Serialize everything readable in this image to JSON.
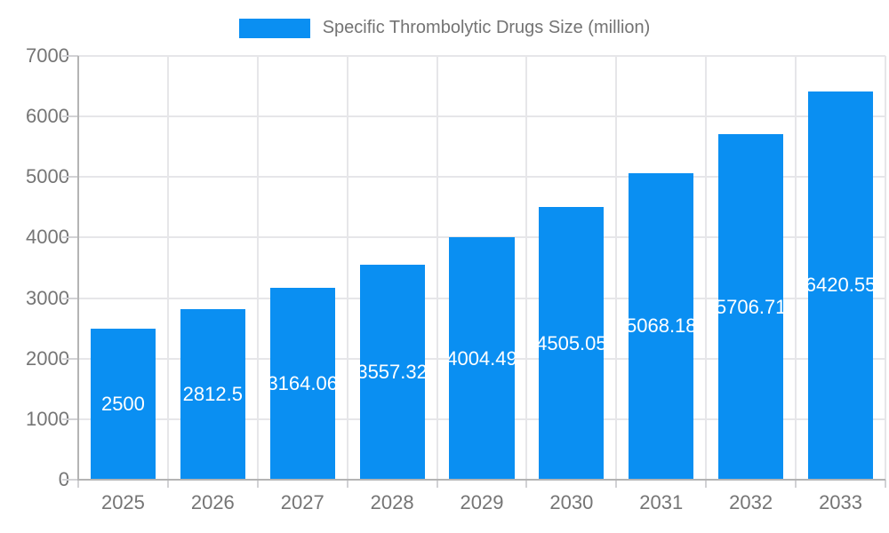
{
  "chart_data": {
    "type": "bar",
    "legend": "Specific Thrombolytic Drugs Size (million)",
    "legend_position": "top",
    "categories": [
      "2025",
      "2026",
      "2027",
      "2028",
      "2029",
      "2030",
      "2031",
      "2032",
      "2033"
    ],
    "series": [
      {
        "name": "Specific Thrombolytic Drugs Size (million)",
        "values": [
          2500,
          2812.5,
          3164.06,
          3557.32,
          4004.49,
          4505.05,
          5068.18,
          5706.71,
          6420.55
        ],
        "value_labels": [
          "2500",
          "2812.5",
          "3164.06",
          "3557.32",
          "4004.49",
          "4505.05",
          "5068.18",
          "5706.71",
          "6420.55"
        ]
      }
    ],
    "xlabel": "",
    "ylabel": "",
    "ylim": [
      0,
      7000
    ],
    "y_ticks": [
      0,
      1000,
      2000,
      3000,
      4000,
      5000,
      6000,
      7000
    ],
    "y_tick_labels": [
      "0",
      "1000",
      "2000",
      "3000",
      "4000",
      "5000",
      "6000",
      "7000"
    ],
    "grid": true,
    "value_labels_inside_bars": true
  },
  "colors": {
    "bar": "#0a8ff2",
    "background": "#ffffff",
    "gridline": "#e6e6e9",
    "axis_line": "#b4b4b4",
    "tick": "#d2d2d5",
    "axis_text": "#757575",
    "legend_text": "#737373",
    "value_text": "#ffffff"
  }
}
